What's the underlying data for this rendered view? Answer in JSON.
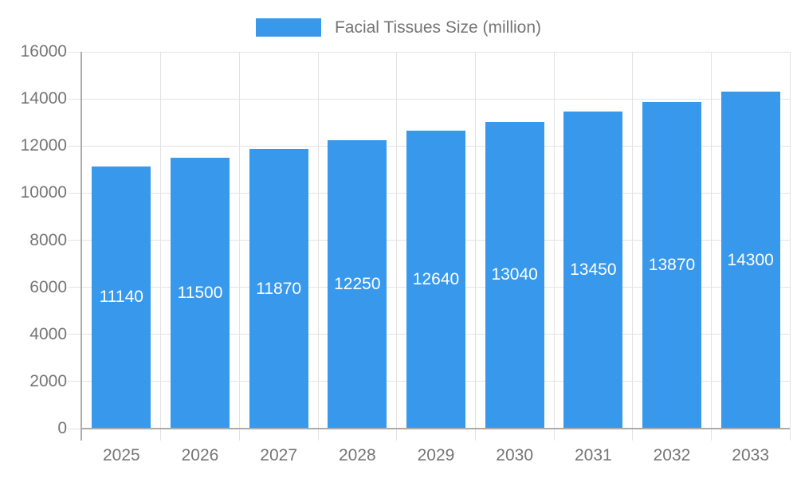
{
  "legend": {
    "label": "Facial Tissues Size (million)"
  },
  "chart_data": {
    "type": "bar",
    "title": "Facial Tissues Size (million)",
    "series_name": "Facial Tissues Size (million)",
    "categories": [
      "2025",
      "2026",
      "2027",
      "2028",
      "2029",
      "2030",
      "2031",
      "2032",
      "2033"
    ],
    "values": [
      11140,
      11500,
      11870,
      12250,
      12640,
      13040,
      13450,
      13870,
      14300
    ],
    "value_labels": [
      "11140",
      "11500",
      "11870",
      "12250",
      "12640",
      "13040",
      "13450",
      "13870",
      "14300"
    ],
    "xlabel": "",
    "ylabel": "",
    "ylim": [
      0,
      16000
    ],
    "yticks": [
      0,
      2000,
      4000,
      6000,
      8000,
      10000,
      12000,
      14000,
      16000
    ],
    "grid": true,
    "legend_position": "top-center",
    "colors": {
      "bar": "#3899ec",
      "bar_value_label": "#ffffff",
      "axis_text": "#757575",
      "gridline": "#e3e3e3",
      "axis_line": "#ababab"
    }
  }
}
